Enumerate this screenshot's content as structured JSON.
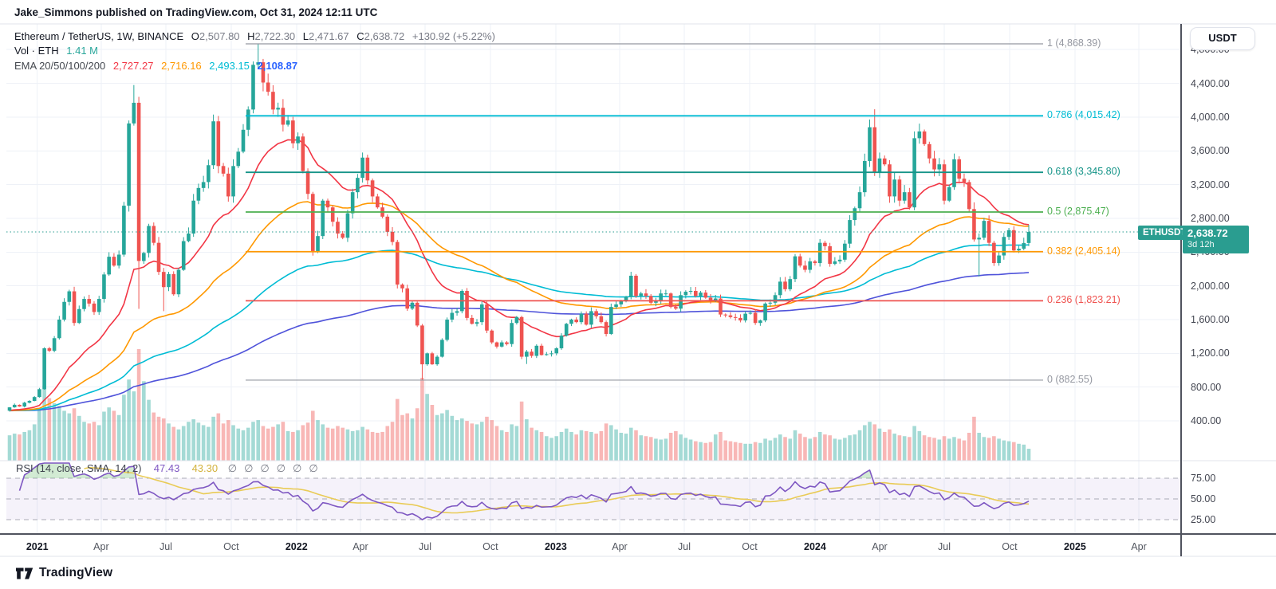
{
  "publish": {
    "text": "Jake_Simmons published on TradingView.com, Oct 31, 2024 12:11 UTC"
  },
  "legend": {
    "symbol": "Ethereum / TetherUS, 1W, BINANCE",
    "ohlc": {
      "o_label": "O",
      "o": "2,507.80",
      "h_label": "H",
      "h": "2,722.30",
      "l_label": "L",
      "l": "2,471.67",
      "c_label": "C",
      "c": "2,638.72",
      "change": "+130.92 (+5.22%)"
    },
    "vol_label": "Vol · ETH",
    "vol_value": "1.41 M",
    "ema_label": "EMA 20/50/100/200",
    "ema20": "2,727.27",
    "ema50": "2,716.16",
    "ema100": "2,493.15",
    "ema200": "2,108.87"
  },
  "rsi": {
    "label": "RSI (14, close, SMA, 14, 2)",
    "value": "47.43",
    "ma": "43.30",
    "icons": [
      "∅",
      "∅",
      "∅",
      "∅",
      "∅",
      "∅"
    ],
    "ticks": [
      {
        "t": "75.00",
        "v": 75
      },
      {
        "t": "50.00",
        "v": 50
      },
      {
        "t": "25.00",
        "v": 25
      }
    ]
  },
  "price_axis": {
    "currency": "USDT",
    "ticks": [
      {
        "t": "4,800.00",
        "v": 4800
      },
      {
        "t": "4,400.00",
        "v": 4400
      },
      {
        "t": "4,000.00",
        "v": 4000
      },
      {
        "t": "3,600.00",
        "v": 3600
      },
      {
        "t": "3,200.00",
        "v": 3200
      },
      {
        "t": "2,800.00",
        "v": 2800
      },
      {
        "t": "2,400.00",
        "v": 2400
      },
      {
        "t": "2,000.00",
        "v": 2000
      },
      {
        "t": "1,600.00",
        "v": 1600
      },
      {
        "t": "1,200.00",
        "v": 1200
      },
      {
        "t": "800.00",
        "v": 800
      },
      {
        "t": "400.00",
        "v": 400
      }
    ]
  },
  "badges": {
    "symbol": "ETHUSDT",
    "price": "2,638.72",
    "countdown": "3d 12h"
  },
  "time_axis": {
    "labels": [
      {
        "t": "2021",
        "wk": 5.57,
        "year": true
      },
      {
        "t": "Apr",
        "wk": 18.43
      },
      {
        "t": "Jul",
        "wk": 31.43
      },
      {
        "t": "Oct",
        "wk": 44.57
      },
      {
        "t": "2022",
        "wk": 57.71,
        "year": true
      },
      {
        "t": "Apr",
        "wk": 70.57
      },
      {
        "t": "Jul",
        "wk": 83.57
      },
      {
        "t": "Oct",
        "wk": 96.71
      },
      {
        "t": "2023",
        "wk": 109.86,
        "year": true
      },
      {
        "t": "Apr",
        "wk": 122.71
      },
      {
        "t": "Jul",
        "wk": 135.71
      },
      {
        "t": "Oct",
        "wk": 148.86
      },
      {
        "t": "2024",
        "wk": 162.0,
        "year": true
      },
      {
        "t": "Apr",
        "wk": 175.0
      },
      {
        "t": "Jul",
        "wk": 188.0
      },
      {
        "t": "Oct",
        "wk": 201.14
      },
      {
        "t": "2025",
        "wk": 214.29,
        "year": true
      },
      {
        "t": "Apr",
        "wk": 227.14
      }
    ]
  },
  "footer": {
    "brand": "TradingView"
  },
  "chart_data": {
    "type": "candlestick+volume+rsi",
    "symbol": "ETHUSDT",
    "exchange": "BINANCE",
    "interval": "1W",
    "first_candle_date": "2020-11-23",
    "last_candle_date": "2024-10-28",
    "last_ohlc": {
      "o": 2507.8,
      "h": 2722.3,
      "l": 2471.67,
      "c": 2638.72,
      "change": 130.92,
      "change_pct": 5.22
    },
    "last_volume_m": 1.41,
    "ema_values": {
      "ema20": 2727.27,
      "ema50": 2716.16,
      "ema100": 2493.15,
      "ema200": 2108.87
    },
    "rsi_values": {
      "rsi": 47.43,
      "sma": 43.3
    },
    "fib_levels": [
      {
        "level": "1",
        "price_str": "4,868.39",
        "v": 4868.39,
        "color": "#9598a1"
      },
      {
        "level": "0.786",
        "price_str": "4,015.42",
        "v": 4015.42,
        "color": "#00bcd4"
      },
      {
        "level": "0.618",
        "price_str": "3,345.80",
        "v": 3345.8,
        "color": "#159488"
      },
      {
        "level": "0.5",
        "price_str": "2,875.47",
        "v": 2875.47,
        "color": "#4caf50"
      },
      {
        "level": "0.382",
        "price_str": "2,405.14",
        "v": 2405.14,
        "color": "#ff9800"
      },
      {
        "level": "0.236",
        "price_str": "1,823.21",
        "v": 1823.21,
        "color": "#ef5350"
      },
      {
        "level": "0",
        "price_str": "882.55",
        "v": 882.55,
        "color": "#9598a1"
      }
    ],
    "current_price": 2638.72,
    "price_axis_range": [
      400,
      4800
    ],
    "rsi_axis_lines": [
      75,
      50,
      25
    ],
    "first_open": 520,
    "weekly_closes": [
      560,
      590,
      570,
      615,
      636,
      682,
      775,
      1260,
      1230,
      1380,
      1600,
      1810,
      1935,
      1560,
      1725,
      1845,
      1790,
      1690,
      1845,
      2135,
      2345,
      2240,
      2370,
      2950,
      3925,
      4170,
      2295,
      2390,
      2710,
      2510,
      2165,
      1985,
      2140,
      1900,
      2190,
      2530,
      2620,
      3010,
      3160,
      3230,
      3430,
      3950,
      3420,
      3330,
      3060,
      3420,
      3590,
      3850,
      4090,
      4620,
      4650,
      4410,
      4300,
      4090,
      4110,
      3910,
      3960,
      3690,
      3770,
      3360,
      3090,
      2410,
      2590,
      3010,
      2930,
      2760,
      2620,
      2570,
      2860,
      3110,
      3280,
      3520,
      3250,
      3060,
      2930,
      2820,
      2640,
      2520,
      2015,
      1970,
      1730,
      1800,
      1530,
      1070,
      1200,
      1070,
      1160,
      1360,
      1600,
      1680,
      1700,
      1940,
      1620,
      1550,
      1570,
      1780,
      1470,
      1330,
      1280,
      1330,
      1310,
      1560,
      1630,
      1160,
      1220,
      1170,
      1290,
      1180,
      1190,
      1200,
      1260,
      1410,
      1550,
      1600,
      1570,
      1670,
      1540,
      1700,
      1640,
      1570,
      1430,
      1750,
      1780,
      1820,
      1870,
      2120,
      1880,
      1910,
      1880,
      1800,
      1830,
      1910,
      1910,
      1750,
      1730,
      1890,
      1930,
      1940,
      1880,
      1920,
      1860,
      1830,
      1850,
      1660,
      1650,
      1630,
      1620,
      1590,
      1670,
      1680,
      1560,
      1590,
      1790,
      1800,
      1890,
      2050,
      1960,
      2080,
      2350,
      2240,
      2190,
      2290,
      2270,
      2510,
      2470,
      2260,
      2290,
      2310,
      2500,
      2780,
      2920,
      3110,
      3480,
      3880,
      3340,
      3510,
      3440,
      3060,
      3260,
      3010,
      3110,
      2930,
      3750,
      3830,
      3680,
      3510,
      3380,
      3440,
      3010,
      3170,
      3500,
      3270,
      3230,
      2910,
      2550,
      2570,
      2770,
      2510,
      2270,
      2360,
      2580,
      2660,
      2420,
      2440,
      2508,
      2638.72
    ],
    "weekly_volumes_m": [
      3.0,
      3.2,
      3.1,
      3.4,
      3.6,
      4.3,
      6.1,
      8.9,
      7.4,
      6.8,
      6.5,
      5.9,
      5.6,
      6.2,
      5.3,
      4.6,
      4.4,
      4.6,
      4.2,
      5.8,
      6.3,
      5.9,
      5.4,
      7.8,
      9.6,
      8.2,
      13.2,
      9.4,
      7.2,
      5.7,
      5.2,
      5.0,
      4.4,
      4.0,
      3.7,
      4.1,
      4.6,
      4.9,
      4.5,
      4.2,
      4.0,
      5.2,
      5.6,
      4.4,
      4.8,
      4.2,
      3.8,
      3.6,
      3.9,
      4.6,
      4.8,
      4.1,
      3.8,
      4.0,
      4.3,
      4.6,
      3.5,
      3.4,
      3.6,
      4.2,
      4.5,
      5.9,
      4.8,
      4.3,
      3.9,
      3.8,
      4.1,
      3.9,
      3.7,
      3.5,
      3.6,
      4.0,
      3.7,
      3.4,
      3.3,
      3.4,
      4.1,
      4.6,
      7.3,
      5.4,
      5.6,
      5.0,
      6.2,
      9.8,
      7.9,
      6.6,
      5.4,
      5.6,
      6.0,
      5.3,
      4.8,
      5.0,
      4.7,
      4.4,
      4.3,
      4.6,
      5.2,
      4.8,
      4.1,
      3.6,
      3.4,
      4.3,
      4.1,
      7.0,
      4.9,
      3.9,
      3.6,
      3.4,
      2.9,
      2.7,
      2.9,
      3.4,
      3.8,
      3.4,
      3.1,
      3.6,
      3.5,
      3.4,
      3.2,
      3.5,
      4.4,
      4.2,
      3.7,
      3.3,
      3.2,
      3.9,
      3.6,
      3.0,
      2.9,
      2.8,
      2.6,
      2.5,
      2.6,
      3.3,
      3.5,
      3.1,
      2.7,
      2.5,
      2.3,
      2.2,
      2.1,
      2.2,
      3.1,
      3.4,
      2.4,
      2.3,
      2.2,
      2.1,
      2.0,
      2.0,
      2.2,
      2.1,
      2.6,
      2.4,
      2.7,
      3.1,
      2.8,
      2.6,
      3.6,
      3.2,
      2.8,
      2.6,
      2.8,
      3.4,
      3.1,
      3.0,
      2.6,
      2.5,
      2.7,
      3.0,
      3.1,
      3.6,
      4.2,
      4.6,
      4.3,
      3.8,
      3.4,
      3.7,
      3.2,
      3.0,
      2.9,
      2.8,
      4.1,
      3.5,
      3.0,
      2.8,
      2.7,
      2.5,
      2.9,
      2.6,
      2.8,
      2.6,
      2.4,
      3.3,
      5.2,
      3.3,
      2.8,
      2.7,
      2.9,
      2.6,
      2.4,
      2.3,
      2.2,
      2.0,
      1.9,
      1.41
    ],
    "wick_overrides": {
      "25": [
        4380,
        null
      ],
      "26": [
        null,
        1728
      ],
      "31": [
        null,
        1700
      ],
      "41": [
        4030,
        null
      ],
      "50": [
        4868.39,
        null
      ],
      "83": [
        null,
        881
      ],
      "104": [
        null,
        1074
      ],
      "126": [
        2140,
        null
      ],
      "174": [
        4093,
        null
      ],
      "195": [
        null,
        2111
      ],
      "205": [
        2722.3,
        2471.67
      ]
    },
    "style": {
      "up": "#26a69a",
      "down": "#ef5350",
      "vol_up": "rgba(38,166,154,0.42)",
      "vol_down": "rgba(239,83,80,0.42)",
      "ema_colors": [
        "#f23645",
        "#ff9800",
        "#00bcd4",
        "#4f53da"
      ],
      "rsi_line": "#7e57c2",
      "rsi_ma_line": "#e9cb56",
      "rsi_band": "rgba(126,87,194,0.08)",
      "rsi_over_fill": "rgba(76,175,80,0.25)",
      "rsi_under_fill": "rgba(239,83,80,0.2)",
      "grid": "#eef1f7",
      "accent_teal": "#2a9d90",
      "axis_line": "#50535e"
    }
  }
}
